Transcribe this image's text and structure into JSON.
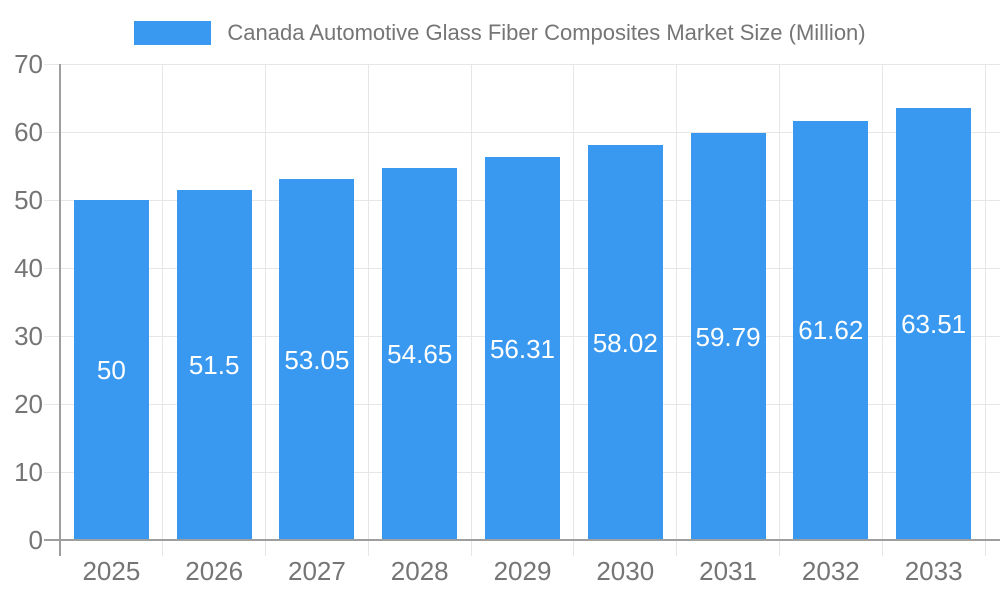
{
  "chart_data": {
    "type": "bar",
    "title": "Canada Automotive Glass Fiber Composites Market Size (Million)",
    "legend_position": "top",
    "categories": [
      "2025",
      "2026",
      "2027",
      "2028",
      "2029",
      "2030",
      "2031",
      "2032",
      "2033"
    ],
    "values": [
      50,
      51.5,
      53.05,
      54.65,
      56.31,
      58.02,
      59.79,
      61.62,
      63.51
    ],
    "value_labels": [
      "50",
      "51.5",
      "53.05",
      "54.65",
      "56.31",
      "58.02",
      "59.79",
      "61.62",
      "63.51"
    ],
    "xlabel": "",
    "ylabel": "",
    "ylim": [
      0,
      70
    ],
    "yticks": [
      0,
      10,
      20,
      30,
      40,
      50,
      60,
      70
    ],
    "grid": true,
    "colors": {
      "bar": "#3999F0",
      "grid": "#E6E6E6",
      "axis": "#9E9E9E",
      "label": "#757575",
      "value_label": "#FFFFFF",
      "background": "#FFFFFF"
    }
  }
}
